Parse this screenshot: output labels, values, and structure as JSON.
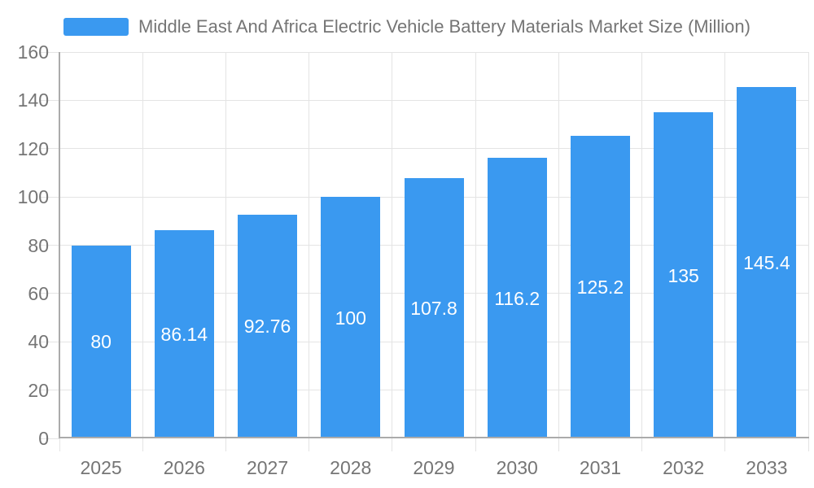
{
  "chart_data": {
    "type": "bar",
    "title": "Middle East And Africa Electric Vehicle Battery Materials Market Size (Million)",
    "series_name": "Middle East And Africa Electric Vehicle Battery Materials Market Size (Million)",
    "categories": [
      "2025",
      "2026",
      "2027",
      "2028",
      "2029",
      "2030",
      "2031",
      "2032",
      "2033"
    ],
    "values": [
      80,
      86.14,
      92.76,
      100,
      107.8,
      116.2,
      125.2,
      135,
      145.4
    ],
    "bar_labels": [
      "80",
      "86.14",
      "92.76",
      "100",
      "107.8",
      "116.2",
      "125.2",
      "135",
      "145.4"
    ],
    "y_tick_labels": [
      "0",
      "20",
      "40",
      "60",
      "80",
      "100",
      "120",
      "140",
      "160"
    ],
    "xlabel": "",
    "ylabel": "",
    "ylim": [
      0,
      160
    ],
    "ytick_step": 20,
    "grid": true,
    "legend_position": "top",
    "colors": {
      "bar": "#3A99F0",
      "grid": "#e4e4e4",
      "axis": "#ababab",
      "text": "#757575",
      "bar_label": "#ffffff",
      "background": "#ffffff"
    }
  }
}
